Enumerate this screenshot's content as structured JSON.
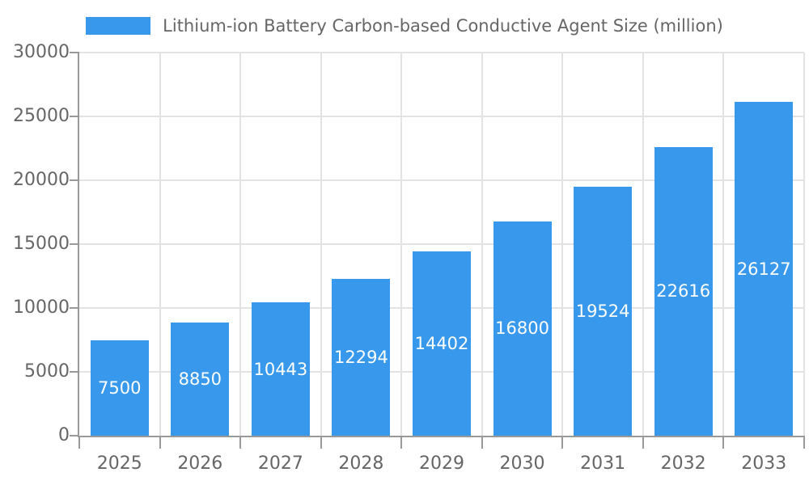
{
  "legend": {
    "label": "Lithium-ion Battery Carbon-based Conductive Agent Size (million)"
  },
  "chart_data": {
    "type": "bar",
    "title": "Lithium-ion Battery Carbon-based Conductive Agent Size (million)",
    "series_name": "Lithium-ion Battery Carbon-based Conductive Agent Size (million)",
    "categories": [
      "2025",
      "2026",
      "2027",
      "2028",
      "2029",
      "2030",
      "2031",
      "2032",
      "2033"
    ],
    "values": [
      7500,
      8850,
      10443,
      12294,
      14402,
      16800,
      19524,
      22616,
      26127
    ],
    "xlabel": "",
    "ylabel": "",
    "ylim": [
      0,
      30000
    ],
    "yticks": [
      0,
      5000,
      10000,
      15000,
      20000,
      25000,
      30000
    ],
    "grid": true,
    "legend_position": "top-center",
    "data_labels": "inside-center",
    "colors": {
      "bar": "#3899EC",
      "grid": "#E3E3E3",
      "axis": "#999999",
      "tick_label": "#666666",
      "legend_text": "#666666",
      "value_label": "#FFFFFF",
      "background": "#FFFFFF"
    }
  }
}
